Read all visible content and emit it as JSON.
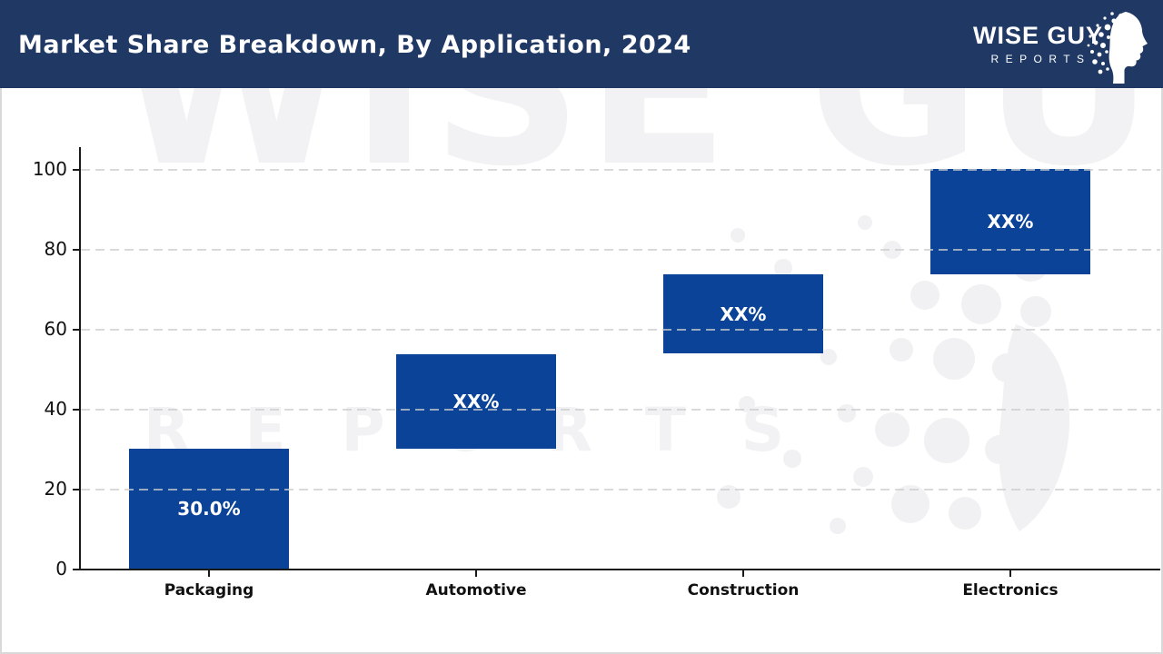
{
  "header": {
    "title": "Market Share Breakdown, By Application, 2024",
    "bg_color": "#1f3864",
    "logo": {
      "line1": "WISE GUY",
      "line2": "REPORTS",
      "icon": "dotted-head-profile"
    }
  },
  "watermark": {
    "line1": "WISE GUY",
    "line2": "REPORTS",
    "icon": "dotted-head-profile"
  },
  "chart_data": {
    "type": "bar",
    "variant": "floating-waterfall",
    "title": "Market Share Breakdown, By Application, 2024",
    "xlabel": "",
    "ylabel": "",
    "categories": [
      "Packaging",
      "Automotive",
      "Construction",
      "Electronics"
    ],
    "segments": [
      {
        "category": "Packaging",
        "start": 0,
        "end": 30,
        "label": "30.0%"
      },
      {
        "category": "Automotive",
        "start": 30,
        "end": 53.6,
        "label": "XX%"
      },
      {
        "category": "Construction",
        "start": 53.9,
        "end": 73.6,
        "label": "XX%"
      },
      {
        "category": "Electronics",
        "start": 73.6,
        "end": 100,
        "label": "XX%"
      }
    ],
    "yticks": [
      0,
      20,
      40,
      60,
      80,
      100
    ],
    "ylim": [
      0,
      105
    ],
    "grid": "horizontal-dashed",
    "legend": "none",
    "colors": {
      "bar": "#0b4398",
      "bar_label": "#ffffff",
      "axis": "#1a1a1a",
      "gridline": "#d9d9d9",
      "tick_label": "#111111",
      "header_bg": "#1f3864",
      "watermark": "#f2f2f4",
      "page_border": "#d9d9d9"
    }
  }
}
